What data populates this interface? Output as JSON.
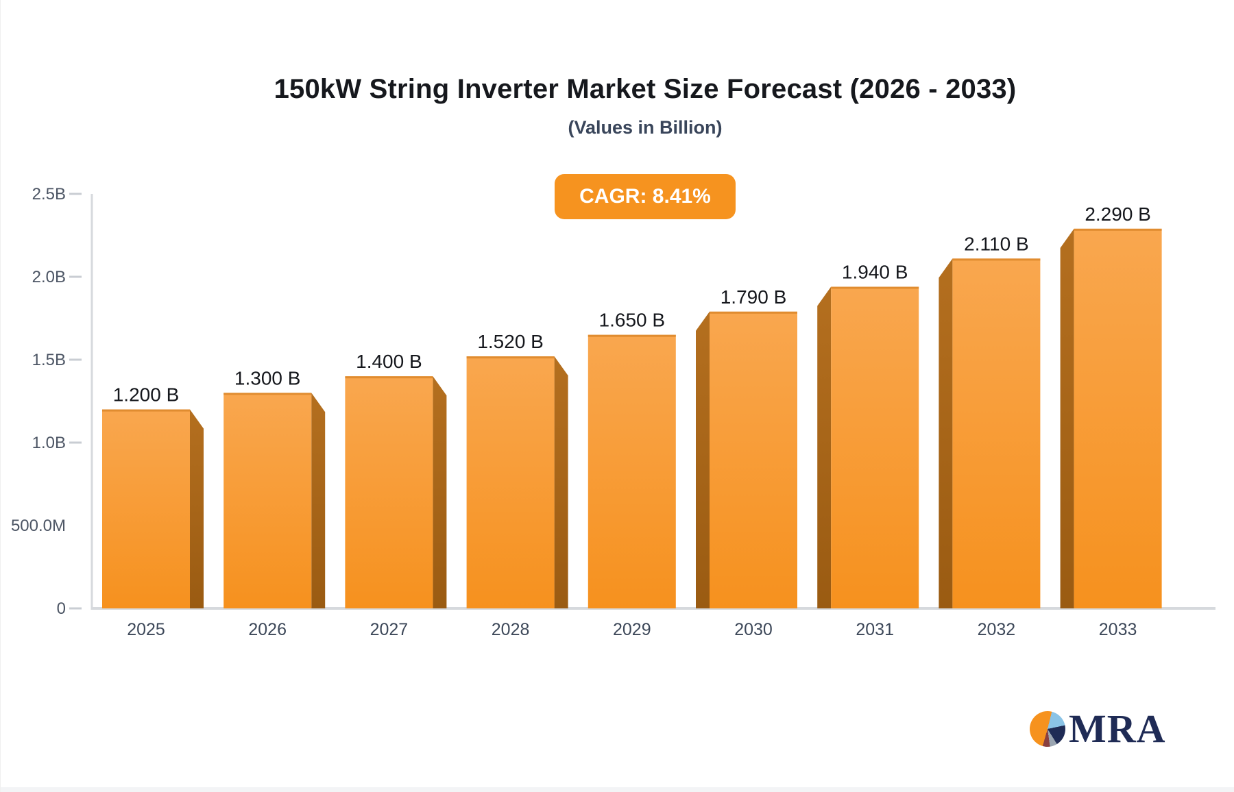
{
  "header": {
    "title": "150kW String Inverter Market Size Forecast (2026 - 2033)",
    "subtitle": "(Values in Billion)",
    "cagr_label": "CAGR: 8.41%"
  },
  "chart_data": {
    "type": "bar",
    "title": "150kW String Inverter Market Size Forecast (2026 - 2033)",
    "subtitle": "(Values in Billion)",
    "cagr_percent": 8.41,
    "categories": [
      "2025",
      "2026",
      "2027",
      "2028",
      "2029",
      "2030",
      "2031",
      "2032",
      "2033"
    ],
    "values": [
      1.2,
      1.3,
      1.4,
      1.52,
      1.65,
      1.79,
      1.94,
      2.11,
      2.29
    ],
    "value_labels": [
      "1.200 B",
      "1.300 B",
      "1.400 B",
      "1.520 B",
      "1.650 B",
      "1.790 B",
      "1.940 B",
      "2.110 B",
      "2.290 B"
    ],
    "xlabel": "",
    "ylabel": "",
    "ylim": [
      0,
      2.5
    ],
    "yticks": [
      {
        "value": 0,
        "label": "0",
        "dash": true
      },
      {
        "value": 0.5,
        "label": "500.0M",
        "dash": false
      },
      {
        "value": 1,
        "label": "1.0B",
        "dash": true
      },
      {
        "value": 1.5,
        "label": "1.5B",
        "dash": true
      },
      {
        "value": 2,
        "label": "2.0B",
        "dash": true
      },
      {
        "value": 2.5,
        "label": "2.5B",
        "dash": true
      }
    ],
    "grid": false,
    "legend": false,
    "bar_style": "pseudo-3d; side shading faces outward from center bar (2029)"
  },
  "colors": {
    "bar_face_top": "#F9A74F",
    "bar_face_bottom": "#F6911E",
    "bar_top_edge": "#DD8A2C",
    "bar_side_top": "#B46F1F",
    "bar_side_bottom": "#9A5B12",
    "badge_bg": "#F6931F",
    "badge_text": "#FFFFFF",
    "axis_line": "#D6D9DD",
    "tick": "#C9CDD3",
    "title_text": "#16181D",
    "subtitle_text": "#39455A",
    "axis_label": "#4C5564",
    "category_label": "#3D4859",
    "value_label": "#15171C",
    "logo_navy": "#1F2B55",
    "logo_orange": "#F6921E",
    "logo_lightblue": "#8AC3E6",
    "logo_gray": "#9AA5B1",
    "logo_maroon": "#8A4040"
  },
  "logo": {
    "text": "MRA",
    "icon": "pie-chart"
  }
}
